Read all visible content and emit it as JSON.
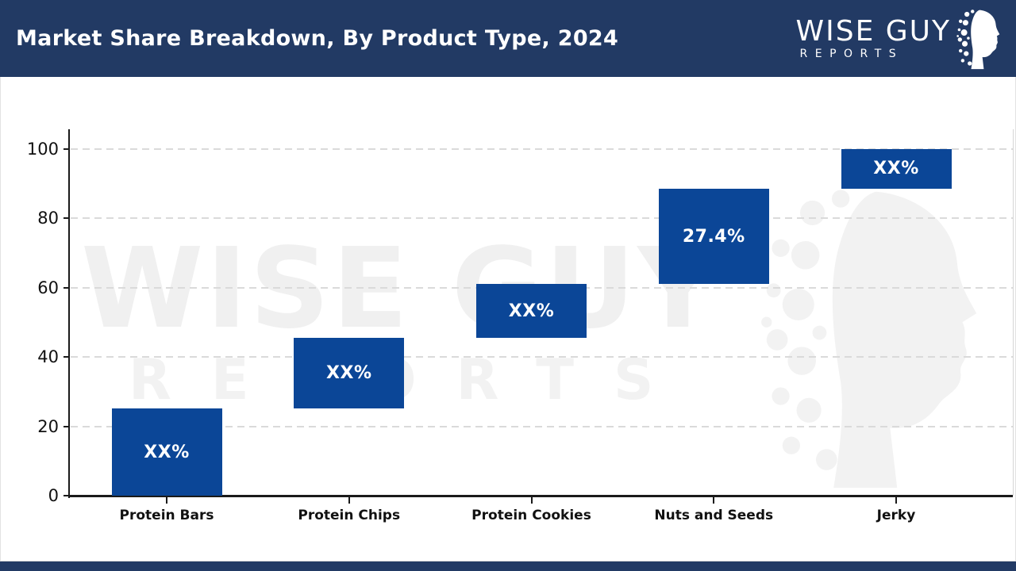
{
  "header": {
    "title": "Market Share Breakdown, By Product Type, 2024",
    "logo": {
      "line1": "WISE GUY",
      "line2": "REPORTS"
    }
  },
  "watermark": {
    "line1": "WISE GUY",
    "line2": "REPORTS"
  },
  "colors": {
    "header_navy": "#223a64",
    "bar_blue": "#0b4697",
    "gridline_gray": "#dadada",
    "watermark_gray": "#f0f0f0",
    "axis_dark": "#1a1a1a"
  },
  "chart_data": {
    "type": "bar",
    "variant": "waterfall",
    "title": "Market Share Breakdown, By Product Type, 2024",
    "categories": [
      "Protein Bars",
      "Protein Chips",
      "Protein Cookies",
      "Nuts and Seeds",
      "Jerky"
    ],
    "segments": [
      {
        "category": "Protein Bars",
        "start": 0,
        "end": 25.1,
        "size": 25.1,
        "label": "XX%"
      },
      {
        "category": "Protein Chips",
        "start": 25.1,
        "end": 45.5,
        "size": 20.4,
        "label": "XX%"
      },
      {
        "category": "Protein Cookies",
        "start": 45.5,
        "end": 61.0,
        "size": 15.5,
        "label": "XX%"
      },
      {
        "category": "Nuts and Seeds",
        "start": 61.0,
        "end": 88.4,
        "size": 27.4,
        "label": "27.4%"
      },
      {
        "category": "Jerky",
        "start": 88.4,
        "end": 100,
        "size": 11.6,
        "label": "XX%"
      }
    ],
    "yticks": [
      0,
      20,
      40,
      60,
      80,
      100
    ],
    "ylim": [
      0,
      105
    ],
    "xlabel": "",
    "ylabel": "",
    "grid": {
      "axis": "y",
      "style": "dashed",
      "color": "#dadada"
    },
    "legend": null,
    "bar_color": "#0b4697",
    "bar_label_color": "#ffffff"
  }
}
